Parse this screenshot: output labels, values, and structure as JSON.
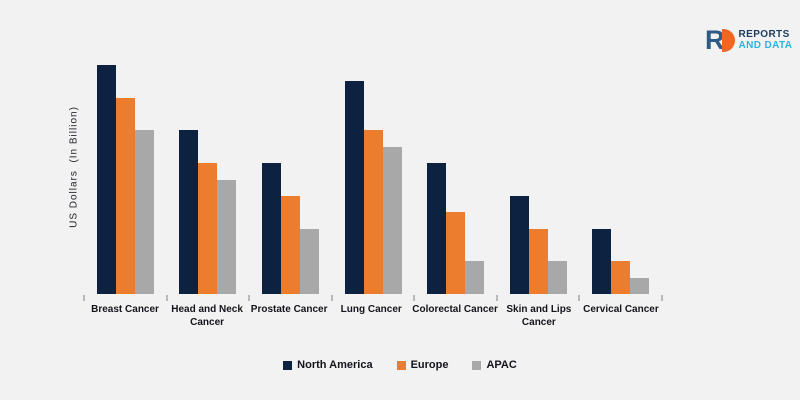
{
  "page": {
    "background": "#f2f2f2"
  },
  "logo": {
    "mark": "RD",
    "mark_r": "R",
    "line1": "REPORTS",
    "line2": "AND DATA",
    "colors": {
      "r": "#2d5a87",
      "d": "#f26522",
      "line1": "#1c3c5e",
      "line2": "#2ab5e0"
    }
  },
  "chart_data": {
    "type": "bar",
    "title": "",
    "xlabel": "",
    "ylabel": "US Dollars  (In Billion)",
    "categories": [
      "Breast Cancer",
      "Head and Neck Cancer",
      "Prostate Cancer",
      "Lung Cancer",
      "Colorectal Cancer",
      "Skin and Lips Cancer",
      "Cervical Cancer"
    ],
    "categories_display": [
      "Breast Cancer",
      "Head and Neck\nCancer",
      "Prostate Cancer",
      "Lung Cancer",
      "Colorectal Cancer",
      "Skin and Lips\nCancer",
      "Cervical Cancer"
    ],
    "series": [
      {
        "name": "North America",
        "color": "#0d2240",
        "values": [
          14,
          10,
          8,
          13,
          8,
          6,
          4
        ]
      },
      {
        "name": "Europe",
        "color": "#ec7d2f",
        "values": [
          12,
          8,
          6,
          10,
          5,
          4,
          2
        ]
      },
      {
        "name": "APAC",
        "color": "#a8a8a8",
        "values": [
          10,
          7,
          4,
          9,
          2,
          2,
          1
        ]
      }
    ],
    "ylim": [
      0,
      14
    ],
    "grid": false,
    "legend_position": "bottom"
  }
}
